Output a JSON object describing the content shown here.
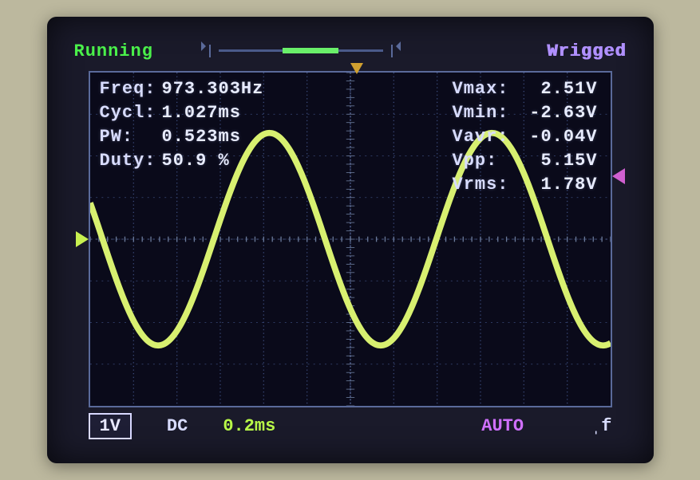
{
  "status": {
    "running": "Running",
    "triggered": "Wrigged"
  },
  "measurements_left": [
    {
      "label": "Freq:",
      "value": "973.303Hz"
    },
    {
      "label": "Cycl:",
      "value": "1.027ms"
    },
    {
      "label": "PW:",
      "value": "0.523ms"
    },
    {
      "label": "Duty:",
      "value": "50.9 %"
    }
  ],
  "measurements_right": [
    {
      "label": "Vmax:",
      "value": "2.51V"
    },
    {
      "label": "Vmin:",
      "value": "-2.63V"
    },
    {
      "label": "Vavr:",
      "value": "-0.04V"
    },
    {
      "label": "Vpp:",
      "value": "5.15V"
    },
    {
      "label": "Vrms:",
      "value": "1.78V"
    }
  ],
  "bottom": {
    "vdiv": "1V",
    "coupling": "DC",
    "timebase": "0.2ms",
    "trigmode": "AUTO",
    "edge": "ˌf"
  },
  "grid": {
    "cols": 12,
    "rows": 8,
    "grid_color": "#3a4a7a",
    "axis_color": "#5a6a9a",
    "tick_color": "#6a7a9a",
    "background": "#0a0a1a"
  },
  "waveform": {
    "type": "sine",
    "color": "#d8f070",
    "line_width": 3.5,
    "amplitude_div": 2.55,
    "offset_div": 0.0,
    "period_div": 5.13,
    "phase_deg": 160,
    "x_start": 0,
    "x_end": 12,
    "xlim": [
      0,
      12
    ],
    "ylim": [
      -4,
      4
    ],
    "n_points": 400
  },
  "markers": {
    "gnd_y_div": 0.0,
    "trig_level_div": 1.5,
    "trig_pos_div": 6.15
  },
  "colors": {
    "text_primary": "#e0e4ff",
    "running": "#4af04a",
    "triggered": "#b090ff",
    "timebase": "#b8f848",
    "trigmode": "#d070ff",
    "bezel": "#bcb89e",
    "screen_bg": "#0e1028"
  },
  "typography": {
    "font_family": "Courier New",
    "label_fontsize": 22,
    "label_weight": "bold"
  }
}
